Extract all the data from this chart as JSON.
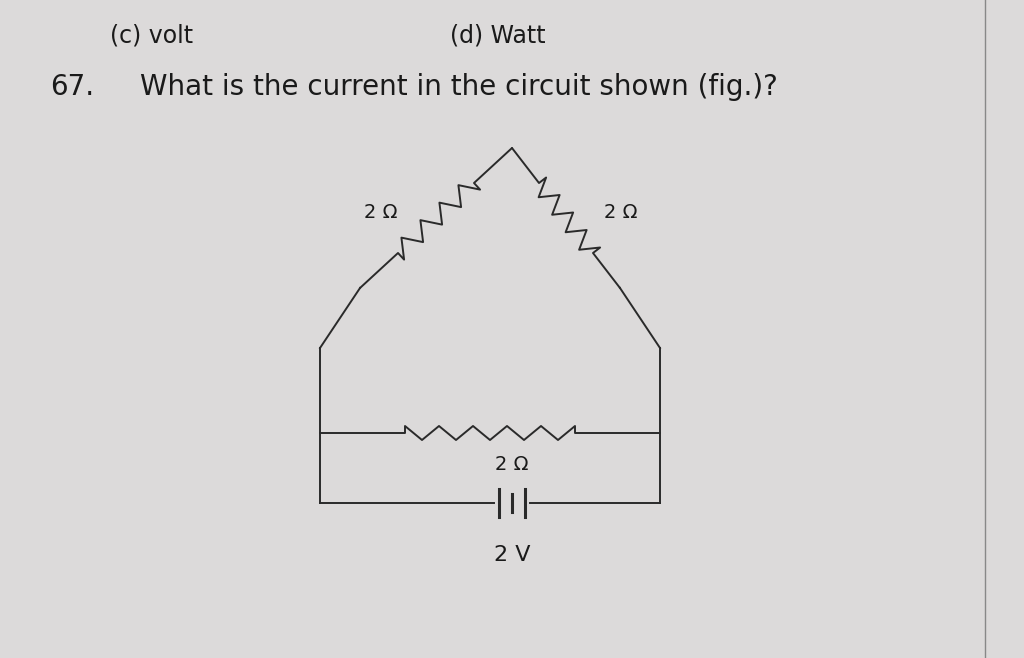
{
  "title_number": "67.",
  "title_text": "What is the current in the circuit shown (fig.)?",
  "header_left": "(c) volt",
  "header_right": "(d) Watt",
  "background_color": "#dcdada",
  "circuit": {
    "battery_voltage": "2 V",
    "resistor_left": "2 Ω",
    "resistor_right": "2 Ω",
    "resistor_bottom": "2 Ω"
  },
  "line_color": "#2a2a2a",
  "text_color": "#1a1a1a",
  "font_size_title": 20,
  "font_size_header": 17,
  "font_size_label": 14
}
